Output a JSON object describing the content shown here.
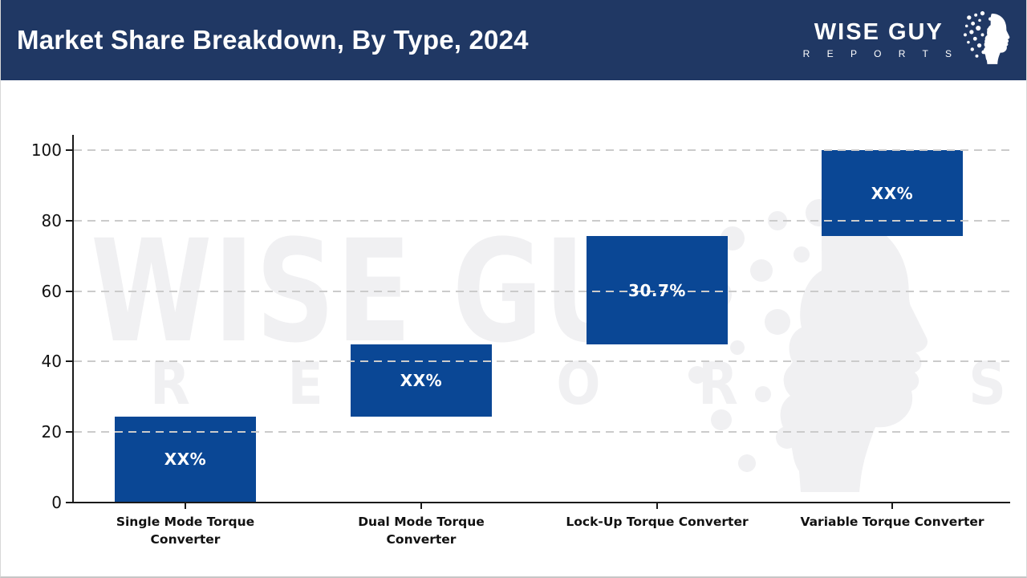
{
  "header": {
    "title": "Market Share Breakdown, By Type, 2024",
    "background": "#203864",
    "logo": {
      "name": "WISE GUY",
      "sub": "R E P O R T S"
    }
  },
  "watermark": {
    "big": "WISE GU",
    "sub": "R E P O R T S"
  },
  "chart_data": {
    "type": "bar",
    "subtype": "waterfall-floating-bars",
    "title": "Market Share Breakdown, By Type, 2024",
    "categories": [
      "Single Mode Torque Converter",
      "Dual Mode Torque Converter",
      "Lock-Up Torque Converter",
      "Variable Torque Converter"
    ],
    "segments": [
      {
        "label": "XX%",
        "start": 0,
        "end": 24.4
      },
      {
        "label": "XX%",
        "start": 24.4,
        "end": 44.9
      },
      {
        "label": "30.7%",
        "start": 44.9,
        "end": 75.6
      },
      {
        "label": "XX%",
        "start": 75.6,
        "end": 100
      }
    ],
    "ylabel": "",
    "xlabel": "",
    "ylim": [
      0,
      100
    ],
    "yticks": [
      0,
      20,
      40,
      60,
      80,
      100
    ],
    "grid": "horizontal-dashed-over-bars",
    "bar_color": "#0a4795",
    "value_label_color": "#ffffff"
  }
}
